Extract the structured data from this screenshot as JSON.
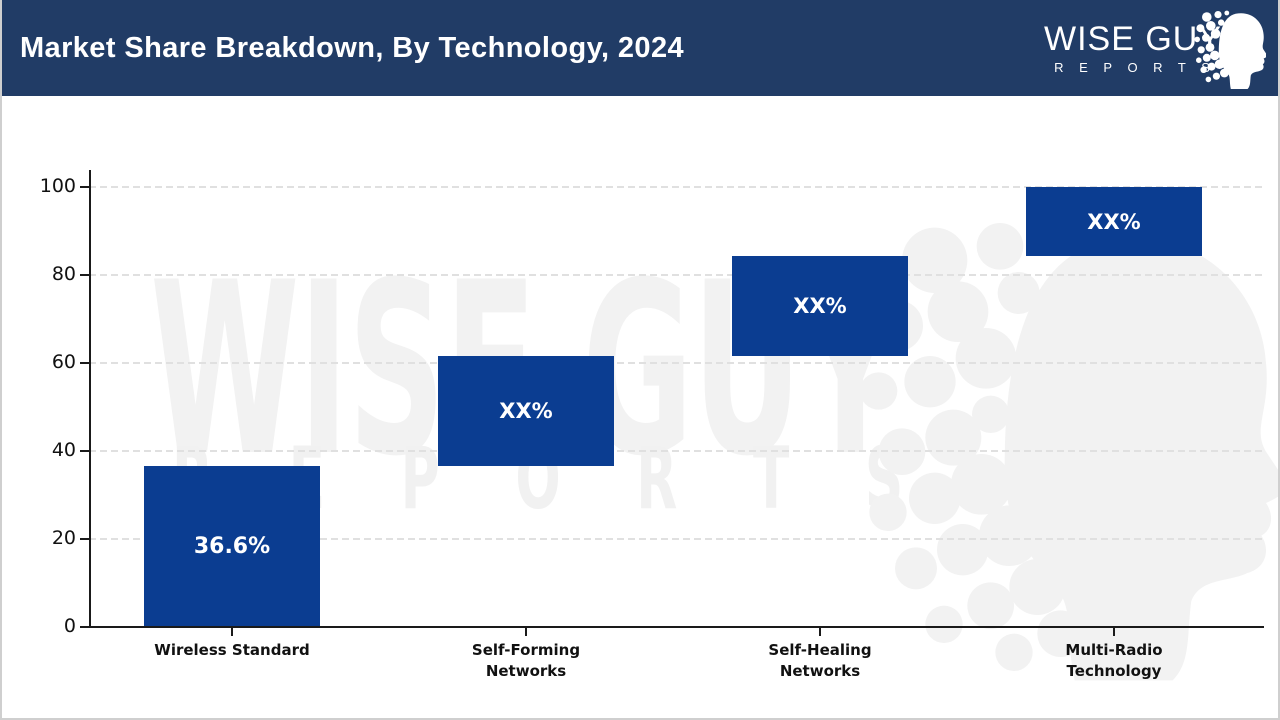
{
  "header": {
    "title": "Market Share Breakdown, By Technology, 2024",
    "logo": {
      "line1": "WISE GUY",
      "line2": "R E P O R T S"
    }
  },
  "watermark": {
    "line1": "WISE GUY",
    "line2": "REPORTS"
  },
  "chart_data": {
    "type": "bar",
    "subtype": "floating-waterfall",
    "title": "Market Share Breakdown, By Technology, 2024",
    "categories": [
      "Wireless Standard",
      "Self-Forming\nNetworks",
      "Self-Healing\nNetworks",
      "Multi-Radio\nTechnology"
    ],
    "segments": [
      {
        "category": "Wireless Standard",
        "start": 0,
        "end": 36.6,
        "label": "36.6%"
      },
      {
        "category": "Self-Forming Networks",
        "start": 36.6,
        "end": 61.6,
        "label": "XX%"
      },
      {
        "category": "Self-Healing Networks",
        "start": 61.6,
        "end": 84.3,
        "label": "XX%"
      },
      {
        "category": "Multi-Radio Technology",
        "start": 84.3,
        "end": 100,
        "label": "XX%"
      }
    ],
    "ylim": [
      0,
      100
    ],
    "yticks": [
      0,
      20,
      40,
      60,
      80,
      100
    ],
    "xlabel": "",
    "ylabel": "",
    "grid": "horizontal-dashed",
    "legend": "none",
    "bar_color": "#0b3d91",
    "bar_label_color": "#ffffff"
  },
  "colors": {
    "header_bg": "#213c66",
    "bar": "#0b3d91",
    "watermark": "#f2f2f2",
    "grid": "#e0e0e0",
    "axis": "#1a1a1a",
    "border": "#cfcfcf"
  }
}
